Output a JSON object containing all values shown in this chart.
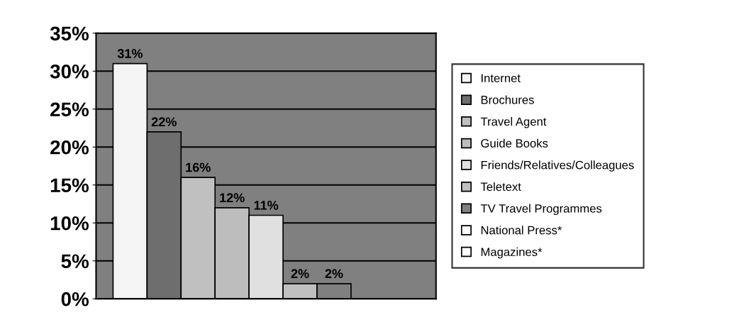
{
  "chart_data": {
    "type": "bar",
    "categories": [
      null
    ],
    "series": [
      {
        "name": "Internet",
        "color": "#f5f5f5",
        "values": [
          31
        ],
        "value_labels": [
          "31%"
        ]
      },
      {
        "name": "Brochures",
        "color": "#6e6e6e",
        "values": [
          22
        ],
        "value_labels": [
          "22%"
        ]
      },
      {
        "name": "Travel Agent",
        "color": "#c0c0c0",
        "values": [
          16
        ],
        "value_labels": [
          "16%"
        ]
      },
      {
        "name": "Guide Books",
        "color": "#bdbdbd",
        "values": [
          12
        ],
        "value_labels": [
          "12%"
        ]
      },
      {
        "name": "Friends/Relatives/Colleagues",
        "color": "#e0e0e0",
        "values": [
          11
        ],
        "value_labels": [
          "11%"
        ]
      },
      {
        "name": "Teletext",
        "color": "#c0c0c0",
        "values": [
          2
        ],
        "value_labels": [
          "2%"
        ]
      },
      {
        "name": "TV Travel Programmes",
        "color": "#808080",
        "values": [
          2
        ],
        "value_labels": [
          "2%"
        ]
      },
      {
        "name": "National Press*",
        "color": "#ffffff",
        "values": [
          0
        ],
        "value_labels": [
          null
        ]
      },
      {
        "name": "Magazines*",
        "color": "#ffffff",
        "values": [
          0
        ],
        "value_labels": [
          null
        ]
      }
    ],
    "ylim": [
      0,
      35
    ],
    "yticks": [
      {
        "value": 0,
        "label": "0%"
      },
      {
        "value": 5,
        "label": "5%"
      },
      {
        "value": 10,
        "label": "10%"
      },
      {
        "value": 15,
        "label": "15%"
      },
      {
        "value": 20,
        "label": "20%"
      },
      {
        "value": 25,
        "label": "25%"
      },
      {
        "value": 30,
        "label": "30%"
      },
      {
        "value": 35,
        "label": "35%"
      }
    ],
    "grid": "y",
    "legend": "right"
  }
}
